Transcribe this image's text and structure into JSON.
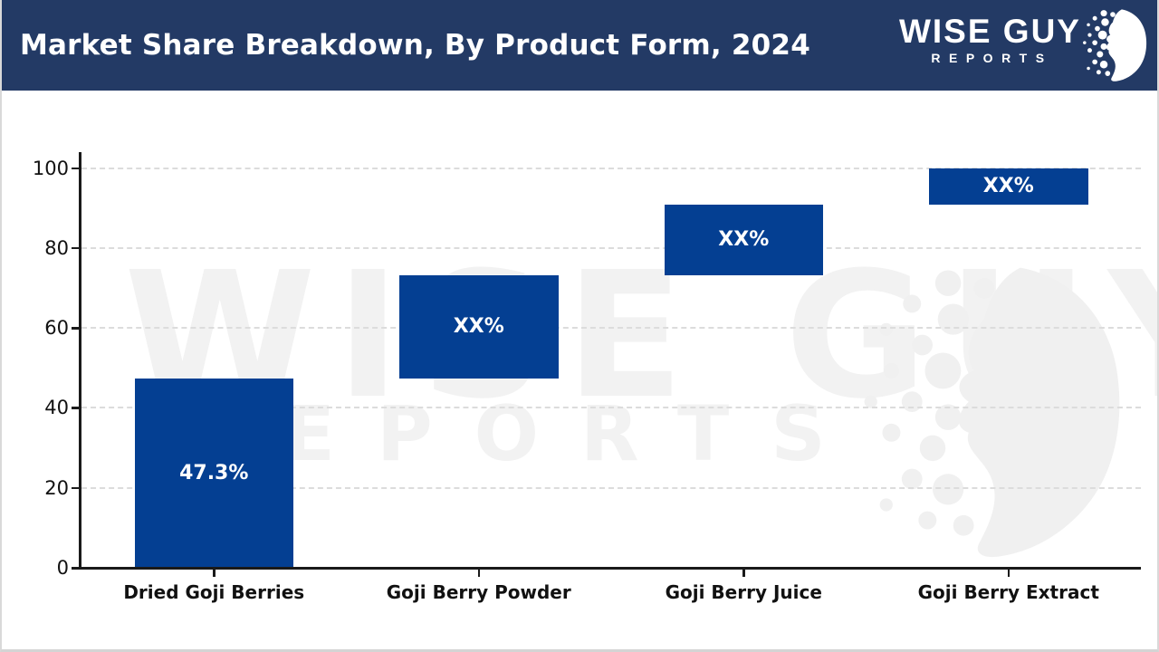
{
  "header": {
    "title": "Market Share Breakdown, By Product Form, 2024",
    "logo": {
      "line1": "WISE GUY",
      "line2": "REPORTS"
    }
  },
  "watermark": {
    "line1": "WISE GUY",
    "line2": "REPORTS"
  },
  "colors": {
    "header_bg": "#233A65",
    "bar": "#043F92",
    "bar_label": "#ffffff",
    "grid": "#dcdcdc",
    "axis": "#1a1a1a",
    "watermark": "#f2f2f2"
  },
  "chart_data": {
    "type": "bar",
    "variant": "waterfall",
    "title": "Market Share Breakdown, By Product Form, 2024",
    "categories": [
      "Dried Goji Berries",
      "Goji Berry Powder",
      "Goji Berry Juice",
      "Goji Berry Extract"
    ],
    "series": [
      {
        "name": "Market Share (%)",
        "segments": [
          {
            "category": "Dried Goji Berries",
            "start": 0,
            "end": 47.3,
            "label": "47.3%"
          },
          {
            "category": "Goji Berry Powder",
            "start": 47.3,
            "end": 73.3,
            "label": "XX%"
          },
          {
            "category": "Goji Berry Juice",
            "start": 73.3,
            "end": 90.9,
            "label": "XX%"
          },
          {
            "category": "Goji Berry Extract",
            "start": 90.9,
            "end": 100,
            "label": "XX%"
          }
        ]
      }
    ],
    "xlabel": "",
    "ylabel": "",
    "ylim": [
      0,
      104
    ],
    "yticks": [
      0,
      20,
      40,
      60,
      80,
      100
    ],
    "grid": "horizontal-dashed",
    "legend": false
  }
}
